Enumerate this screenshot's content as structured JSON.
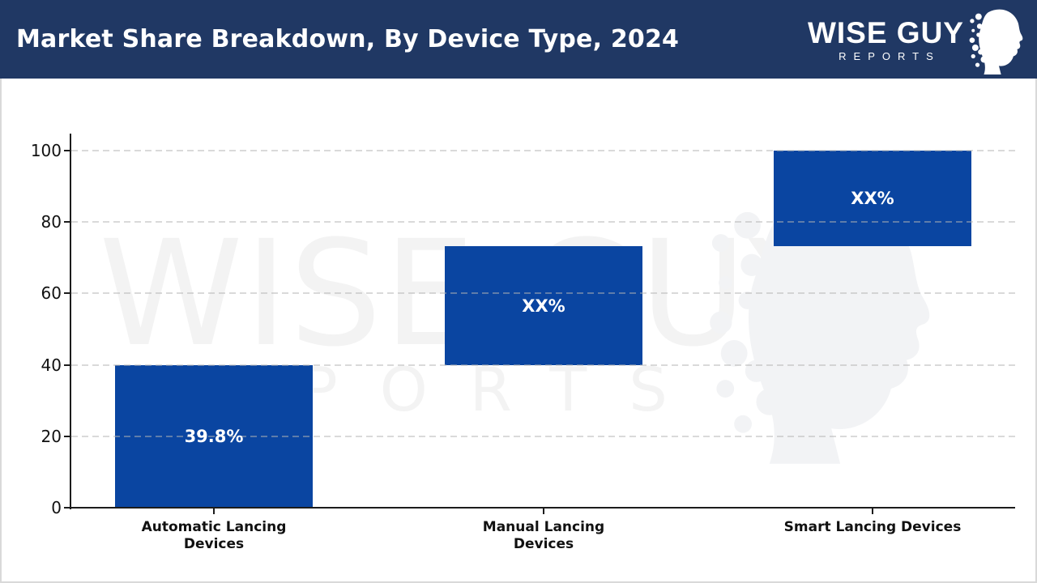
{
  "header": {
    "title": "Market Share Breakdown, By Device Type, 2024",
    "logo": {
      "name": "WISE GUY",
      "sub": "REPORTS"
    }
  },
  "watermark": {
    "name": "WISE GUY",
    "sub": "REPORTS"
  },
  "colors": {
    "header_bg": "#203864",
    "bar": "#0a45a1",
    "bar_label": "#ffffff",
    "axis": "#1c1c1c",
    "grid": "#b4b4b4",
    "watermark": "#f3f3f3",
    "page_border": "#d9d9d9"
  },
  "chart_data": {
    "type": "bar",
    "subtype": "waterfall",
    "title": "Market Share Breakdown, By Device Type, 2024",
    "categories": [
      "Automatic Lancing Devices",
      "Manual Lancing Devices",
      "Smart Lancing Devices"
    ],
    "bars": [
      {
        "category": "Automatic Lancing Devices",
        "label": "39.8%",
        "start": 0,
        "end": 39.8
      },
      {
        "category": "Manual Lancing Devices",
        "label": "XX%",
        "start": 39.8,
        "end": 73.3
      },
      {
        "category": "Smart Lancing Devices",
        "label": "XX%",
        "start": 73.3,
        "end": 100
      }
    ],
    "yticks": [
      0,
      20,
      40,
      60,
      80,
      100
    ],
    "ylim": [
      0,
      105
    ],
    "xlabel": "",
    "ylabel": "",
    "grid": "horizontal-dashed",
    "legend": "none"
  }
}
